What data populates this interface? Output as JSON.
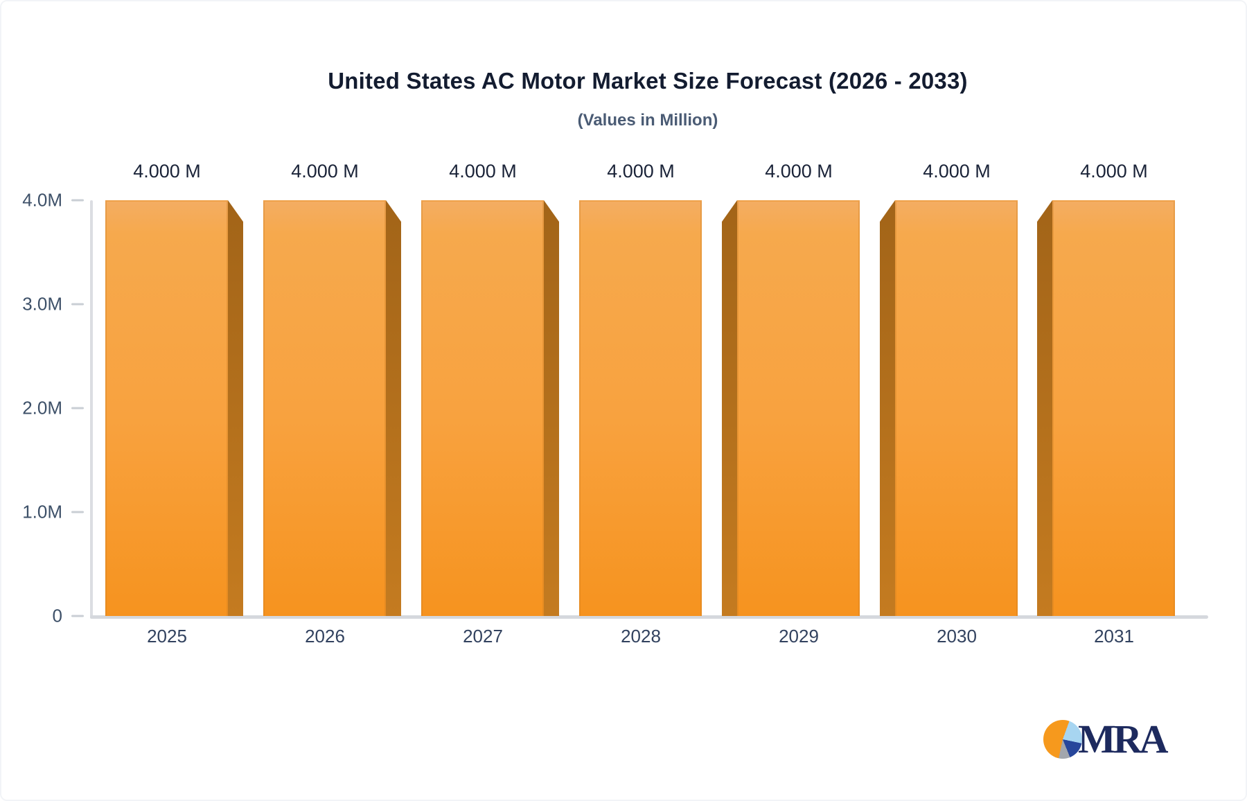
{
  "header": {
    "title": "United States AC Motor Market Size Forecast (2026 - 2033)",
    "subtitle": "(Values in Million)"
  },
  "y_axis": {
    "tick_labels": [
      "4.0M",
      "3.0M",
      "2.0M",
      "1.0M",
      "0"
    ]
  },
  "chart_data": {
    "type": "bar",
    "title": "United States AC Motor Market Size Forecast (2026 - 2033)",
    "subtitle": "(Values in Million)",
    "unit": "Million",
    "categories": [
      "2025",
      "2026",
      "2027",
      "2028",
      "2029",
      "2030",
      "2031"
    ],
    "values": [
      4.0,
      4.0,
      4.0,
      4.0,
      4.0,
      4.0,
      4.0
    ],
    "value_labels": [
      "4.000 M",
      "4.000 M",
      "4.000 M",
      "4.000 M",
      "4.000 M",
      "4.000 M",
      "4.000 M"
    ],
    "xlabel": "",
    "ylabel": "",
    "ylim": [
      0,
      4.0
    ],
    "y_tick_labels_top_to_bottom": [
      "4.0M",
      "3.0M",
      "2.0M",
      "1.0M",
      "0"
    ],
    "grid": false,
    "legend": false,
    "bar_style": "3d-orange",
    "bar_face_color": "#f8a23f",
    "bar_side_color": "#b06c1e",
    "axis_line_color": "#d5d8dd",
    "label_color": "#1a2338"
  },
  "footer": {
    "logo_text": "MRA",
    "logo_pie_colors": [
      "#f6991d",
      "#a7d5f1",
      "#27469b",
      "#a2a6ad"
    ]
  }
}
